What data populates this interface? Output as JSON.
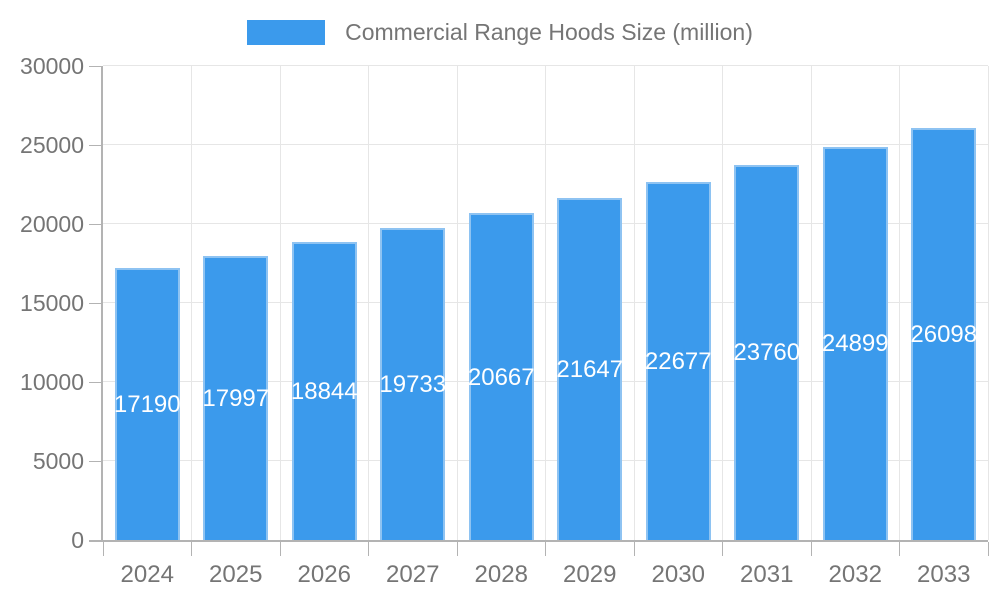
{
  "colors": {
    "bar": "#3b9aec",
    "bar_border": "#8ec3f2",
    "bar_label": "#ffffff",
    "axis": "#b3b3b3",
    "grid": "#e6e6e6",
    "text": "#757575"
  },
  "chart_data": {
    "type": "bar",
    "title": "Commercial Range Hoods Size (million)",
    "categories": [
      "2024",
      "2025",
      "2026",
      "2027",
      "2028",
      "2029",
      "2030",
      "2031",
      "2032",
      "2033"
    ],
    "values": [
      17190,
      17997,
      18844,
      19733,
      20667,
      21647,
      22677,
      23760,
      24899,
      26098
    ],
    "xlabel": "",
    "ylabel": "",
    "ylim": [
      0,
      30000
    ],
    "yticks": [
      0,
      5000,
      10000,
      15000,
      20000,
      25000,
      30000
    ],
    "grid": true,
    "legend_position": "top",
    "value_labels": "inside-center"
  }
}
